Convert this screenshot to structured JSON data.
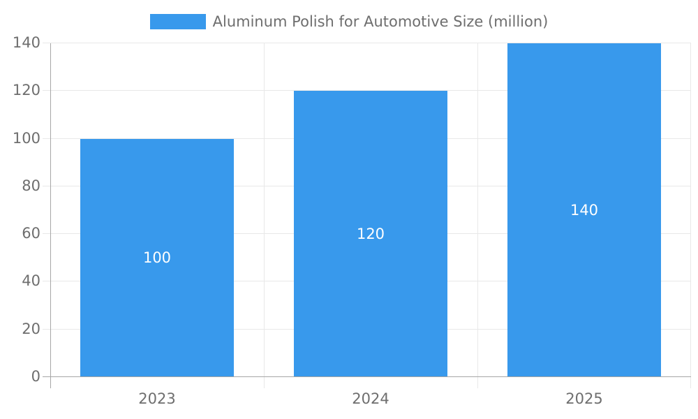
{
  "legend": {
    "label": "Aluminum Polish for Automotive Size (million)"
  },
  "colors": {
    "bar": "#3899ec",
    "grid": "#e8e8e8",
    "axis": "#a6a6a6",
    "text": "#6e6e6e",
    "bar_label": "#ffffff"
  },
  "chart_data": {
    "type": "bar",
    "title": "Aluminum Polish for Automotive Size (million)",
    "series_name": "Aluminum Polish for Automotive Size (million)",
    "categories": [
      "2023",
      "2024",
      "2025"
    ],
    "values": [
      100,
      120,
      140
    ],
    "bar_labels": [
      "100",
      "120",
      "140"
    ],
    "xlabel": "",
    "ylabel": "",
    "ylim": [
      0,
      140
    ],
    "yticks": [
      0,
      20,
      40,
      60,
      80,
      100,
      120,
      140
    ],
    "grid": "both",
    "legend_position": "top"
  }
}
